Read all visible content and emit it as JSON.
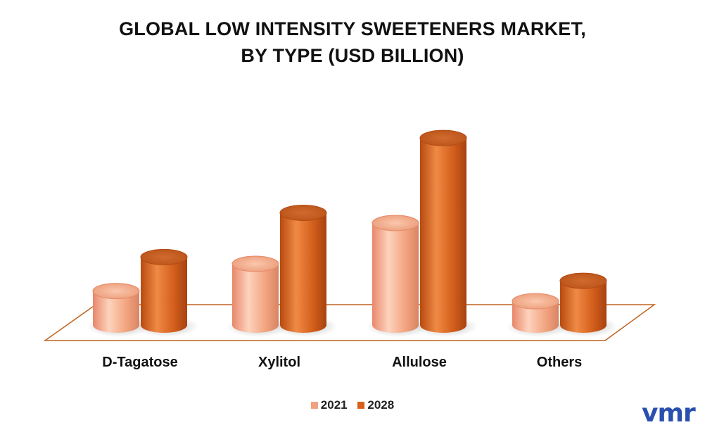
{
  "title_line1": "GLOBAL LOW INTENSITY SWEETENERS MARKET,",
  "title_line2": "BY TYPE (USD BILLION)",
  "logo_text": "vmr",
  "colors": {
    "series_2021": "#f2a07e",
    "series_2028": "#d8601a",
    "floor_edge": "#c0621e",
    "logo": "#2b4fae"
  },
  "chart_data": {
    "type": "bar",
    "categories": [
      "D-Tagatose",
      "Xylitol",
      "Allulose",
      "Others"
    ],
    "series": [
      {
        "name": "2021",
        "values": [
          0.5,
          0.9,
          1.5,
          0.35
        ]
      },
      {
        "name": "2028",
        "values": [
          1.0,
          1.65,
          2.75,
          0.65
        ]
      }
    ],
    "title": "GLOBAL LOW INTENSITY SWEETENERS MARKET, BY TYPE (USD BILLION)",
    "ylim": [
      0,
      3
    ],
    "legend_position": "bottom",
    "style": "3d-cylinder"
  }
}
